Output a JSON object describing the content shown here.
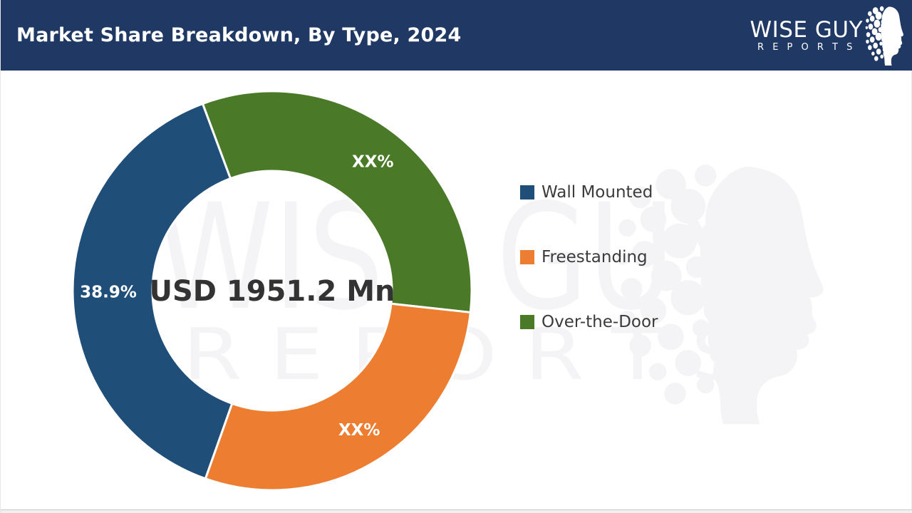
{
  "header": {
    "title": "Market Share Breakdown, By Type, 2024",
    "logo": {
      "wordmark": "WISE GUY",
      "subtext": "R E P O R T S"
    }
  },
  "watermark": {
    "line1": "WISE GUY",
    "line2": "R E P O R T S"
  },
  "chart_data": {
    "type": "pie",
    "subtype": "donut",
    "title": "Market Share Breakdown, By Type, 2024",
    "center_label": "USD 1951.2 Mn",
    "start_angle_deg": -20.4,
    "direction": "clockwise",
    "segments": [
      {
        "label": "Over-the-Door",
        "display": "XX%",
        "value_pct": 32.4,
        "value_hidden": true,
        "color": "#4A7A28"
      },
      {
        "label": "Freestanding",
        "display": "XX%",
        "value_pct": 28.7,
        "value_hidden": true,
        "color": "#ED7D31"
      },
      {
        "label": "Wall Mounted",
        "display": "38.9%",
        "value_pct": 38.9,
        "value_hidden": false,
        "color": "#1F4E79"
      }
    ],
    "legend": [
      {
        "label": "Wall Mounted",
        "color": "#1F4E79"
      },
      {
        "label": "Freestanding",
        "color": "#ED7D31"
      },
      {
        "label": "Over-the-Door",
        "color": "#4A7A28"
      }
    ],
    "legend_position": "right"
  },
  "colors": {
    "header_bg": "#1F3864",
    "watermark": "#F4F4F6",
    "center_text": "#333333",
    "legend_text": "#3B3B3B"
  }
}
